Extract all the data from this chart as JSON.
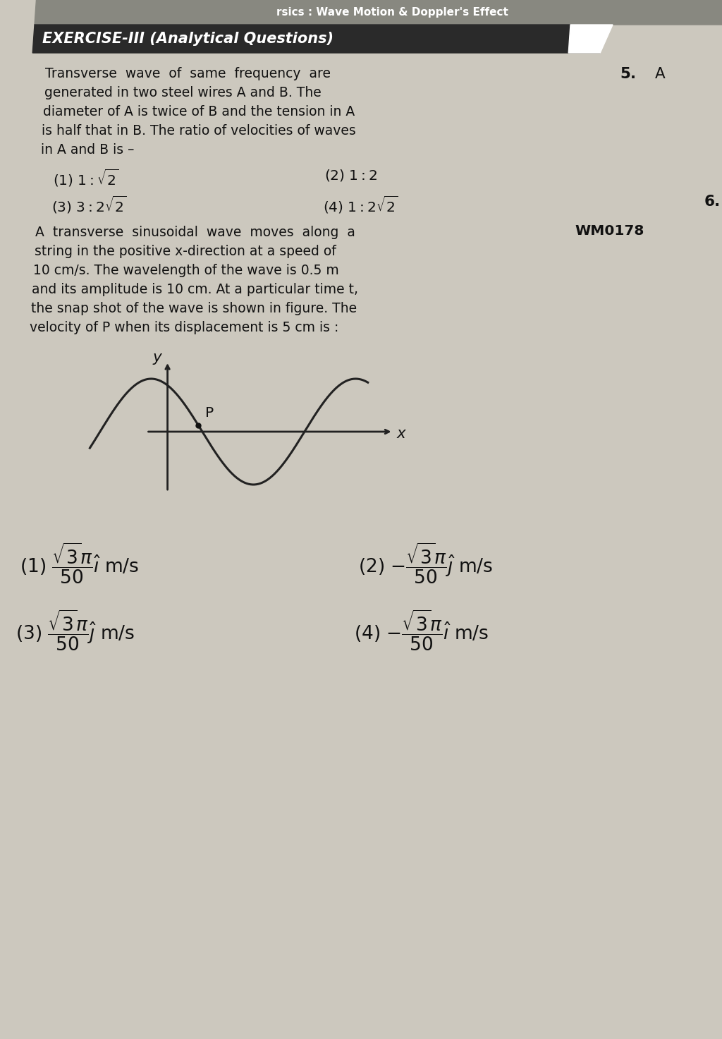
{
  "page_bg": "#ccc8be",
  "header_bar_color": "#888880",
  "header_text": "rsics : Wave Motion & Doppler's Effect",
  "exercise_bar_color": "#2a2a2a",
  "exercise_title": "EXERCISE-III (Analytical Questions)",
  "q4_lines": [
    "Transverse  wave  of  same  frequency  are",
    "generated in two steel wires A and B. The",
    "diameter of A is twice of B and the tension in A",
    "is half that in B. The ratio of velocities of waves",
    "in A and B is –"
  ],
  "wm_code": "WM0178",
  "q6_lines": [
    "A  transverse  sinusoidal  wave  moves  along  a",
    "string in the positive x-direction at a speed of",
    "10 cm/s. The wavelength of the wave is 0.5 m",
    "and its amplitude is 10 cm. At a particular time t,",
    "the snap shot of the wave is shown in figure. The",
    "velocity of P when its displacement is 5 cm is :"
  ],
  "text_color": "#111111",
  "wave_color": "#222222",
  "page_bg_inner": "#dedad2",
  "skew_deg": -4.0,
  "font_body": 13.5,
  "font_opts": 16,
  "font_header": 11,
  "font_exercise": 15
}
